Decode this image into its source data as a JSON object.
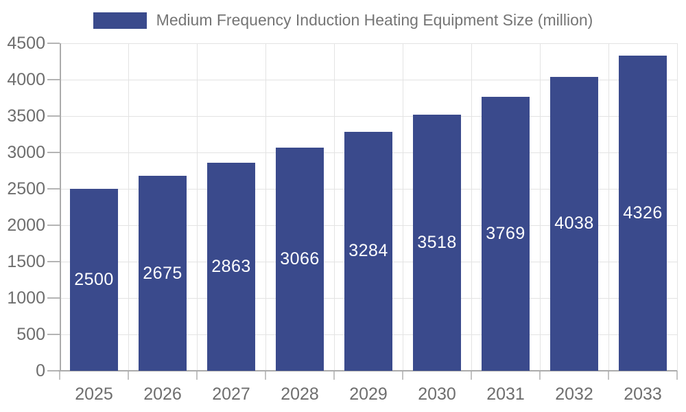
{
  "legend": {
    "label": "Medium Frequency Induction Heating Equipment Size (million)"
  },
  "chart_data": {
    "type": "bar",
    "title": "",
    "categories": [
      "2025",
      "2026",
      "2027",
      "2028",
      "2029",
      "2030",
      "2031",
      "2032",
      "2033"
    ],
    "series": [
      {
        "name": "Medium Frequency Induction Heating Equipment Size (million)",
        "values": [
          2500,
          2675,
          2863,
          3066,
          3284,
          3518,
          3769,
          4038,
          4326
        ],
        "color": "#3A4A8C"
      }
    ],
    "xlabel": "",
    "ylabel": "",
    "ylim": [
      0,
      4500
    ],
    "ytick_step": 500,
    "yticks": [
      0,
      500,
      1000,
      1500,
      2000,
      2500,
      3000,
      3500,
      4000,
      4500
    ],
    "grid": true,
    "legend_position": "top",
    "bar_width_fraction": 0.7,
    "value_labels": "inside-center",
    "colors": {
      "bar": "#3A4A8C",
      "value_label": "#FFFFFF",
      "grid_line": "#E3E3E3",
      "axis_line": "#ABABAB",
      "tick_label": "#6E6E6E",
      "legend_text": "#757575",
      "background": "#FFFFFF"
    }
  }
}
